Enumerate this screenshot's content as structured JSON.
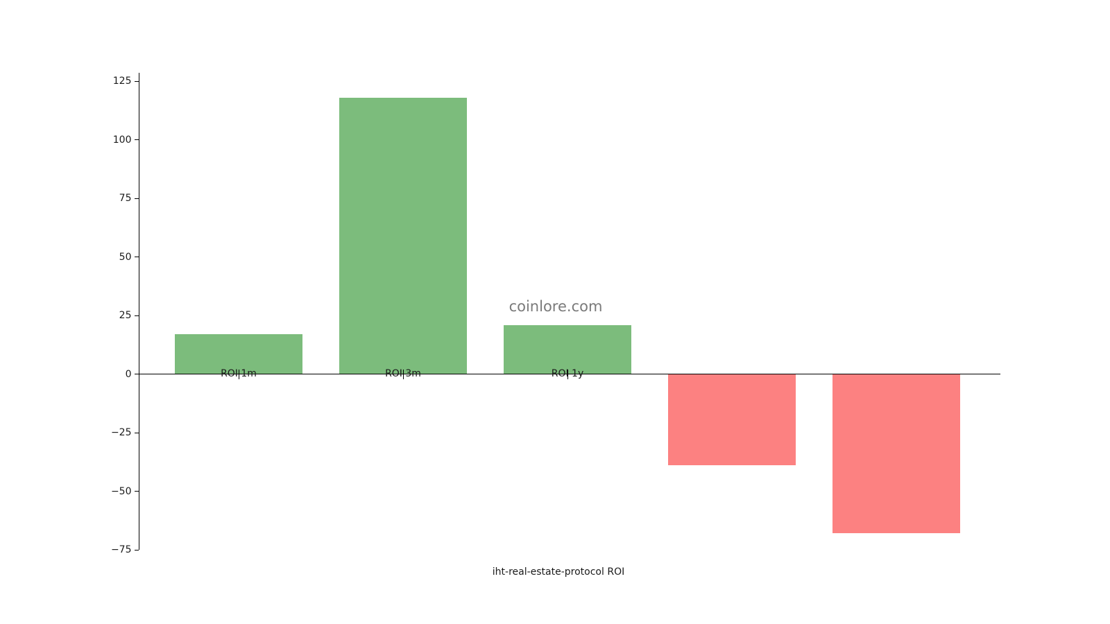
{
  "page": {
    "background": "#ffffff"
  },
  "watermark": {
    "text": "coinlore.com",
    "color": "#7a7a7a"
  },
  "chart_data": {
    "type": "bar",
    "title": "iht-real-estate-protocol ROI",
    "categories": [
      "ROI 1m",
      "ROI 3m",
      "ROI 1y",
      "",
      ""
    ],
    "values": [
      17,
      118,
      21,
      -39,
      -68
    ],
    "yticks": [
      125,
      100,
      75,
      50,
      25,
      0,
      -25,
      -50,
      -75
    ],
    "ylim": [
      -75,
      129
    ],
    "xlabel": "iht-real-estate-protocol ROI",
    "ylabel": "",
    "grid": false,
    "legend_position": "none",
    "colors": {
      "positive": "#7cbc7c",
      "negative": "#fc8181",
      "axis": "#000000",
      "tick_text": "#1a1a1a"
    }
  }
}
